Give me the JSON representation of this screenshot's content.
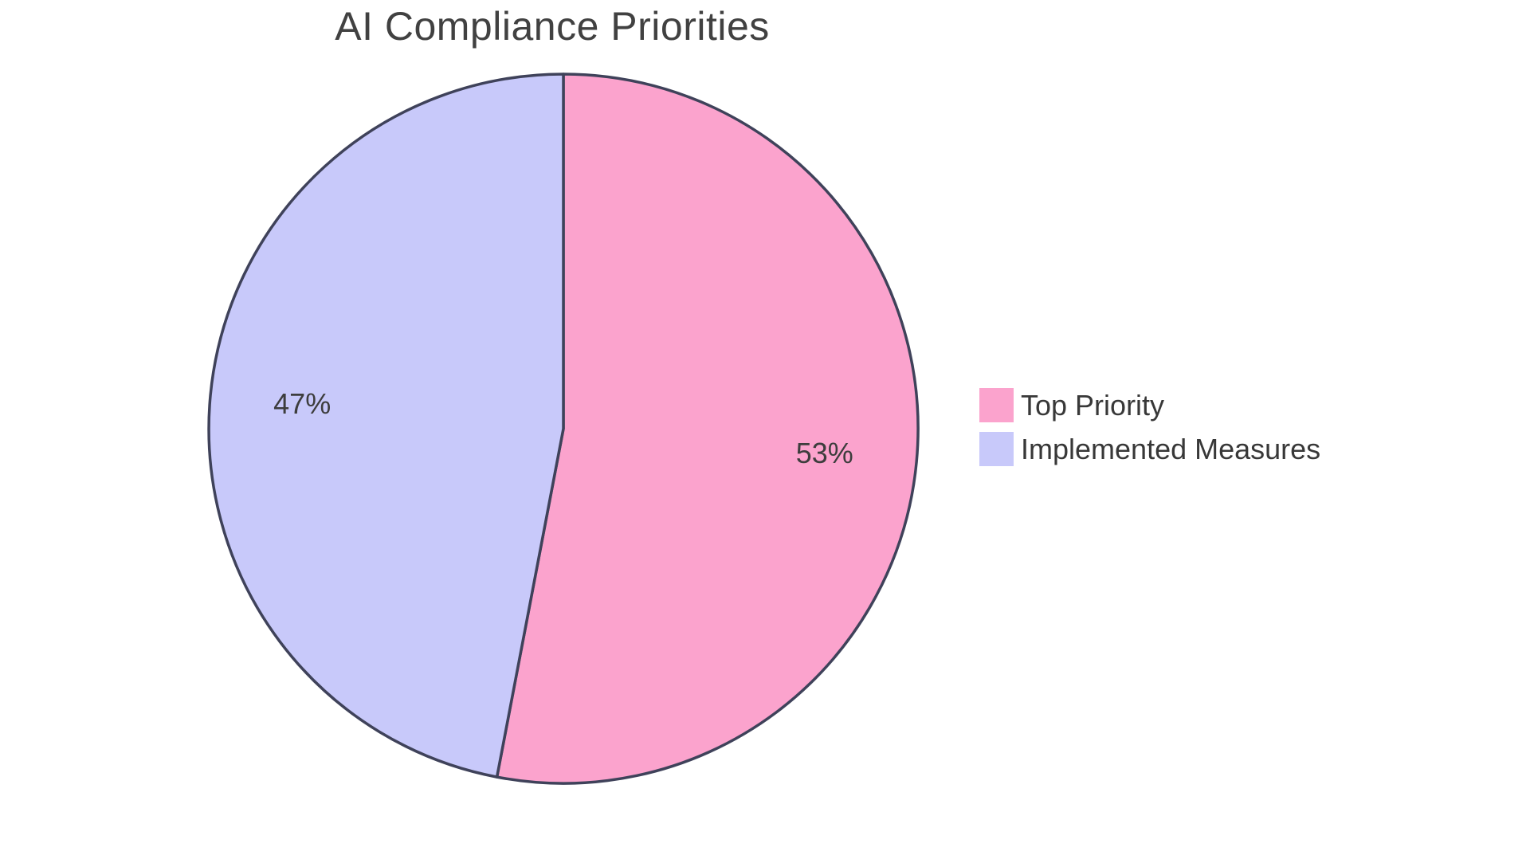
{
  "chart_data": {
    "type": "pie",
    "title": "AI Compliance Priorities",
    "legend_position": "right",
    "start_angle": "top",
    "direction": "clockwise",
    "total": 100,
    "slices": [
      {
        "label": "Top Priority",
        "value": 53,
        "pct_label": "53%",
        "color": "#FBA3CD"
      },
      {
        "label": "Implemented Measures",
        "value": 47,
        "pct_label": "47%",
        "color": "#C8C9FA"
      }
    ],
    "stroke_color": "#3F425A",
    "stroke_width": 3.5,
    "label_color": "#3D3D3D",
    "title_color": "#414141",
    "legend_text_color": "#383838",
    "background": "#FFFFFF"
  }
}
